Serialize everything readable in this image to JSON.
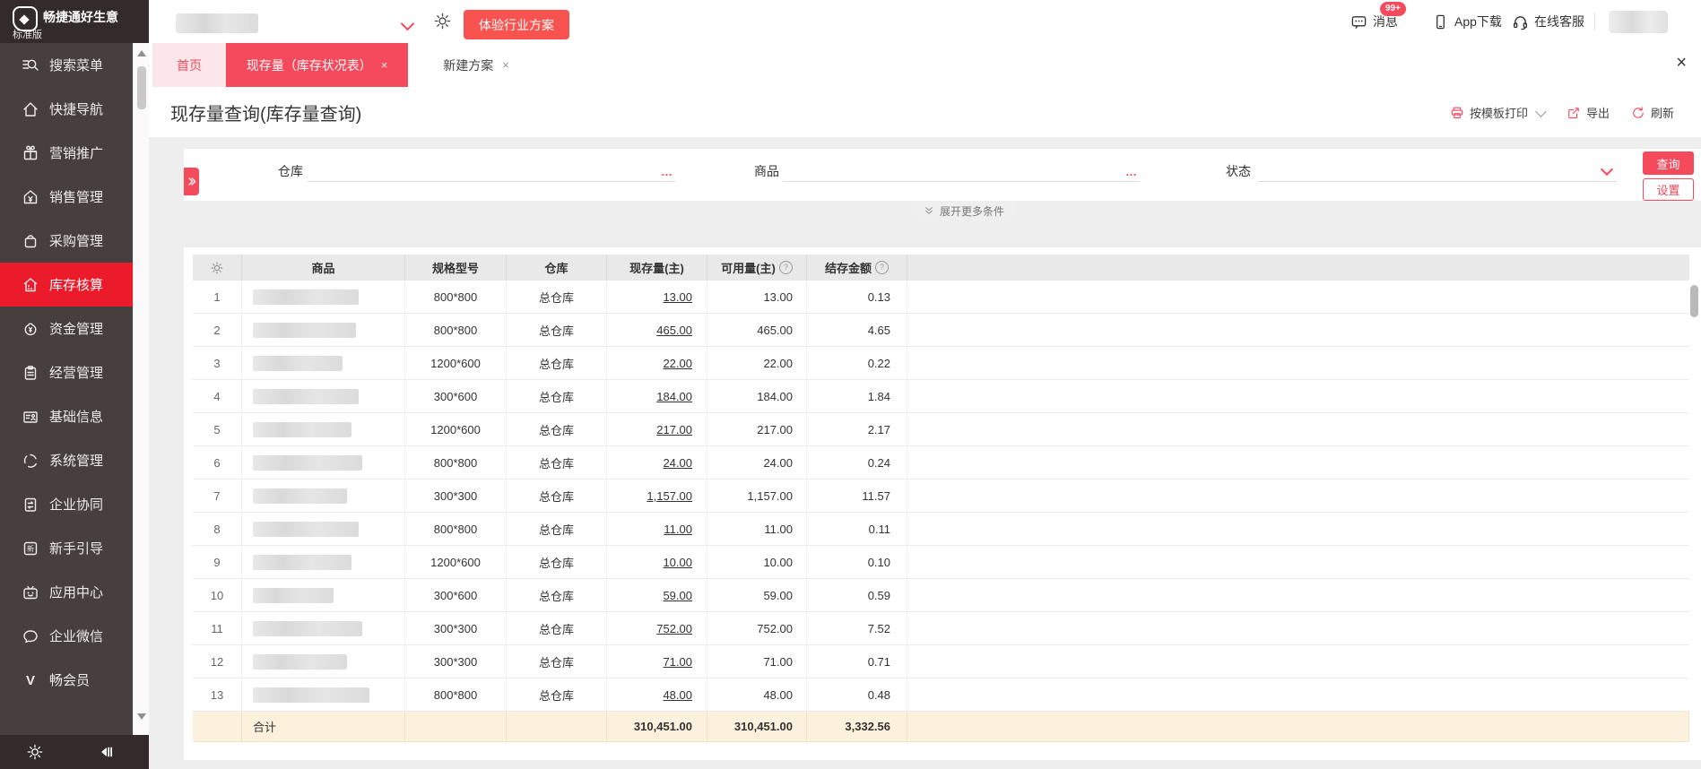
{
  "brand": {
    "name": "畅捷通好生意",
    "edition": "标准版"
  },
  "topbar": {
    "experience_btn": "体验行业方案",
    "messages": "消息",
    "messages_badge": "99+",
    "app_download": "App下载",
    "online_service": "在线客服"
  },
  "tabs": [
    {
      "label": "首页",
      "variant": "home",
      "closable": false
    },
    {
      "label": "现存量（库存状况表）",
      "variant": "active",
      "closable": true
    },
    {
      "label": "新建方案",
      "variant": "normal",
      "closable": true
    }
  ],
  "tab_close_glyph": "×",
  "sidebar": {
    "active": "库存核算",
    "items": [
      {
        "label": "搜索菜单",
        "icon": "search-menu-icon"
      },
      {
        "label": "快捷导航",
        "icon": "quick-nav-icon"
      },
      {
        "label": "营销推广",
        "icon": "marketing-icon"
      },
      {
        "label": "销售管理",
        "icon": "sales-icon"
      },
      {
        "label": "采购管理",
        "icon": "purchase-icon"
      },
      {
        "label": "库存核算",
        "icon": "inventory-icon"
      },
      {
        "label": "资金管理",
        "icon": "funds-icon"
      },
      {
        "label": "经营管理",
        "icon": "operations-icon"
      },
      {
        "label": "基础信息",
        "icon": "basic-info-icon"
      },
      {
        "label": "系统管理",
        "icon": "system-icon"
      },
      {
        "label": "企业协同",
        "icon": "collaboration-icon"
      },
      {
        "label": "新手引导",
        "icon": "newbie-icon"
      },
      {
        "label": "应用中心",
        "icon": "app-center-icon"
      },
      {
        "label": "企业微信",
        "icon": "wechat-work-icon"
      },
      {
        "label": "畅会员",
        "icon": "member-icon"
      }
    ]
  },
  "page": {
    "title": "现存量查询(库存量查询)",
    "print_btn": "按模板打印",
    "export_btn": "导出",
    "refresh_btn": "刷新"
  },
  "filters": {
    "warehouse_label": "仓库",
    "product_label": "商品",
    "status_label": "状态",
    "query_btn": "查询",
    "settings_btn": "设置",
    "expand_more": "展开更多条件",
    "more_glyph": "…"
  },
  "icons": {
    "help_glyph": "?"
  },
  "table": {
    "headers": {
      "product": "商品",
      "spec": "规格型号",
      "warehouse": "仓库",
      "qty": "现存量(主)",
      "available": "可用量(主)",
      "amount": "结存金额"
    },
    "rows": [
      {
        "index": "1",
        "spec": "800*800",
        "warehouse": "总仓库",
        "qty": "13.00",
        "available": "13.00",
        "amount": "0.13"
      },
      {
        "index": "2",
        "spec": "800*800",
        "warehouse": "总仓库",
        "qty": "465.00",
        "available": "465.00",
        "amount": "4.65"
      },
      {
        "index": "3",
        "spec": "1200*600",
        "warehouse": "总仓库",
        "qty": "22.00",
        "available": "22.00",
        "amount": "0.22"
      },
      {
        "index": "4",
        "spec": "300*600",
        "warehouse": "总仓库",
        "qty": "184.00",
        "available": "184.00",
        "amount": "1.84"
      },
      {
        "index": "5",
        "spec": "1200*600",
        "warehouse": "总仓库",
        "qty": "217.00",
        "available": "217.00",
        "amount": "2.17"
      },
      {
        "index": "6",
        "spec": "800*800",
        "warehouse": "总仓库",
        "qty": "24.00",
        "available": "24.00",
        "amount": "0.24"
      },
      {
        "index": "7",
        "spec": "300*300",
        "warehouse": "总仓库",
        "qty": "1,157.00",
        "available": "1,157.00",
        "amount": "11.57"
      },
      {
        "index": "8",
        "spec": "800*800",
        "warehouse": "总仓库",
        "qty": "11.00",
        "available": "11.00",
        "amount": "0.11"
      },
      {
        "index": "9",
        "spec": "1200*600",
        "warehouse": "总仓库",
        "qty": "10.00",
        "available": "10.00",
        "amount": "0.10"
      },
      {
        "index": "10",
        "spec": "300*600",
        "warehouse": "总仓库",
        "qty": "59.00",
        "available": "59.00",
        "amount": "0.59"
      },
      {
        "index": "11",
        "spec": "300*300",
        "warehouse": "总仓库",
        "qty": "752.00",
        "available": "752.00",
        "amount": "7.52"
      },
      {
        "index": "12",
        "spec": "300*300",
        "warehouse": "总仓库",
        "qty": "71.00",
        "available": "71.00",
        "amount": "0.71"
      },
      {
        "index": "13",
        "spec": "800*800",
        "warehouse": "总仓库",
        "qty": "48.00",
        "available": "48.00",
        "amount": "0.48"
      }
    ],
    "total": {
      "label": "合计",
      "qty": "310,451.00",
      "available": "310,451.00",
      "amount": "3,332.56"
    }
  },
  "colors": {
    "accent_red": "#f5495c",
    "sidebar_active_red": "#ec1b2b",
    "total_row_bg": "#fcf1dc"
  }
}
